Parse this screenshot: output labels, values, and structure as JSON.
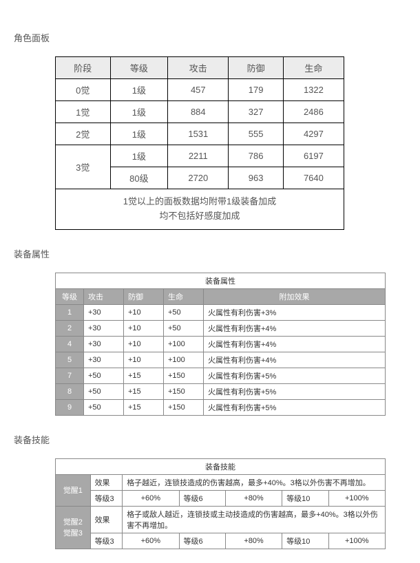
{
  "section1_title": "角色面板",
  "panel": {
    "headers": [
      "阶段",
      "等级",
      "攻击",
      "防御",
      "生命"
    ],
    "rows": [
      {
        "stage": "0觉",
        "level": "1级",
        "atk": "457",
        "def": "179",
        "hp": "1322"
      },
      {
        "stage": "1觉",
        "level": "1级",
        "atk": "884",
        "def": "327",
        "hp": "2486"
      },
      {
        "stage": "2觉",
        "level": "1级",
        "atk": "1531",
        "def": "555",
        "hp": "4297"
      }
    ],
    "stage3_label": "3觉",
    "stage3_rows": [
      {
        "level": "1级",
        "atk": "2211",
        "def": "786",
        "hp": "6197"
      },
      {
        "level": "80级",
        "atk": "2720",
        "def": "963",
        "hp": "7640"
      }
    ],
    "footnote_l1": "1觉以上的面板数据均附带1级装备加成",
    "footnote_l2": "均不包括好感度加成"
  },
  "section2_title": "装备属性",
  "equip": {
    "title": "装备属性",
    "headers": [
      "等级",
      "攻击",
      "防御",
      "生命",
      "附加效果"
    ],
    "rows": [
      {
        "lvl": "1",
        "atk": "+30",
        "def": "+10",
        "hp": "+50",
        "eff": "火属性有利伤害+3%"
      },
      {
        "lvl": "2",
        "atk": "+30",
        "def": "+10",
        "hp": "+50",
        "eff": "火属性有利伤害+4%"
      },
      {
        "lvl": "4",
        "atk": "+30",
        "def": "+10",
        "hp": "+100",
        "eff": "火属性有利伤害+4%"
      },
      {
        "lvl": "5",
        "atk": "+30",
        "def": "+10",
        "hp": "+100",
        "eff": "火属性有利伤害+4%"
      },
      {
        "lvl": "7",
        "atk": "+50",
        "def": "+15",
        "hp": "+150",
        "eff": "火属性有利伤害+5%"
      },
      {
        "lvl": "8",
        "atk": "+50",
        "def": "+15",
        "hp": "+150",
        "eff": "火属性有利伤害+5%"
      },
      {
        "lvl": "9",
        "atk": "+50",
        "def": "+15",
        "hp": "+150",
        "eff": "火属性有利伤害+5%"
      }
    ]
  },
  "section3_title": "装备技能",
  "skill": {
    "title": "装备技能",
    "awaken1_label": "觉醒1",
    "awaken23_label_l1": "觉醒2",
    "awaken23_label_l2": "觉醒3",
    "effect_label": "效果",
    "a1_effect": "格子越近，连锁技造成的伤害越高，最多+40%。3格以外伤害不再增加。",
    "a23_effect": "格子或敌人越近，连锁技或主动技造成的伤害越高，最多+40%。3格以外伤害不再增加。",
    "lv3_label": "等级3",
    "lv6_label": "等级6",
    "lv10_label": "等级10",
    "pct60": "+60%",
    "pct80": "+80%",
    "pct100": "+100%"
  }
}
